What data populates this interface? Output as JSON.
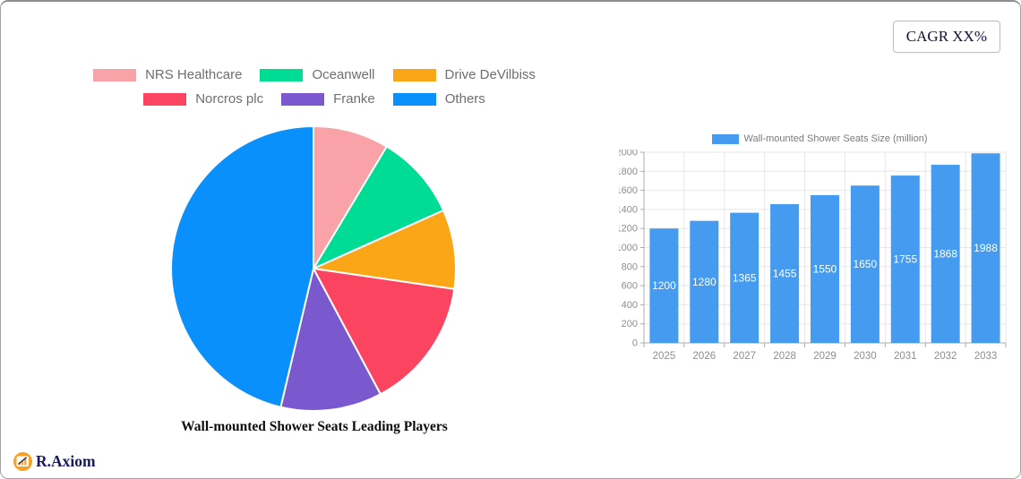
{
  "page": {
    "cagr_label": "CAGR XX%",
    "brand": "R.Axiom"
  },
  "chart_data": [
    {
      "type": "pie",
      "title": "Wall-mounted Shower Seats Leading Players",
      "labels": [
        "NRS Healthcare",
        "Oceanwell",
        "Drive DeVilbiss",
        "Norcros plc",
        "Franke",
        "Others"
      ],
      "values": [
        8.6,
        9.7,
        9.0,
        14.9,
        11.5,
        46.3
      ],
      "colors": [
        "#F9A2A8",
        "#00DC94",
        "#FBA617",
        "#FB4560",
        "#7A59CF",
        "#0990FC"
      ],
      "legend_position": "top",
      "legend_rows": [
        3,
        3
      ],
      "start_angle_deg": 0,
      "direction": "clockwise",
      "slice_border_color": "#FFFFFF"
    },
    {
      "type": "bar",
      "legend": "Wall-mounted Shower Seats Size (million)",
      "categories": [
        "2025",
        "2026",
        "2027",
        "2028",
        "2029",
        "2030",
        "2031",
        "2032",
        "2033"
      ],
      "values": [
        1200,
        1280,
        1365,
        1455,
        1550,
        1650,
        1755,
        1868,
        1988
      ],
      "bar_color": "#459BEF",
      "value_label_color": "#FFFFFF",
      "xlabel": "",
      "ylabel": "",
      "ylim": [
        0,
        2000
      ],
      "ytick_step": 200,
      "grid": true,
      "grid_color": "#E7E7E7",
      "axis_color": "#ACACAC",
      "tick_label_color": "#8E8E8E"
    }
  ]
}
